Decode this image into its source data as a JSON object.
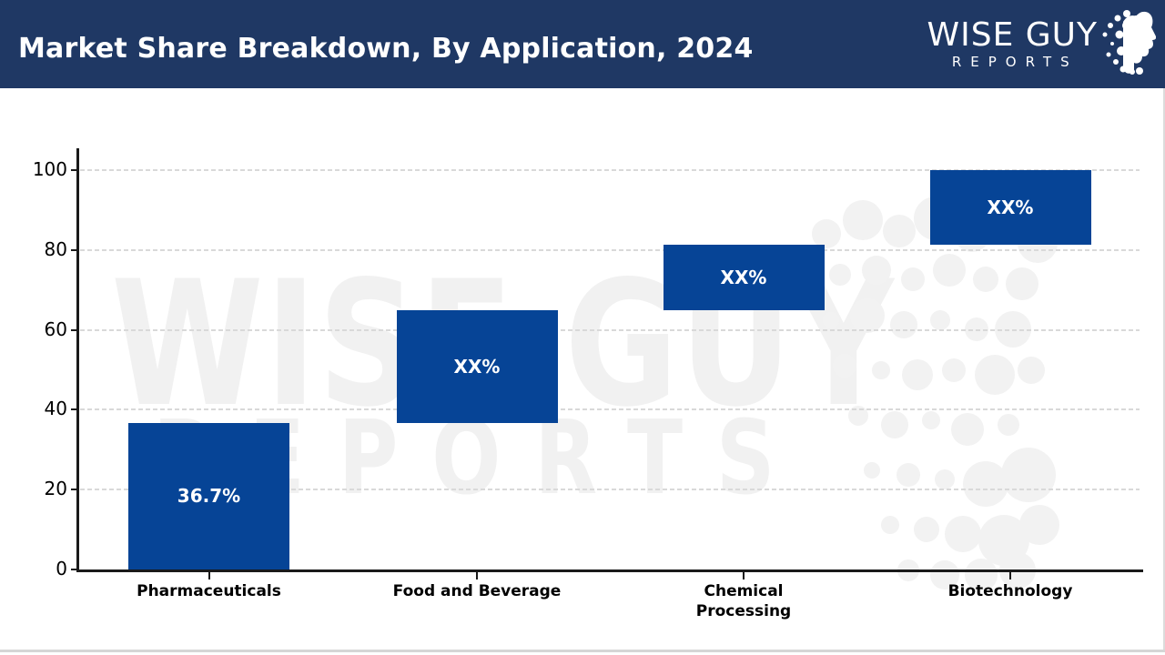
{
  "header": {
    "title": "Market Share Breakdown, By Application, 2024",
    "brand_line1": "WISE GUY",
    "brand_line2": "REPORTS"
  },
  "watermark": {
    "line1": "WISE GUY",
    "line2": "REPORTS"
  },
  "chart_data": {
    "type": "bar",
    "variant": "waterfall",
    "title": "Market Share Breakdown, By Application, 2024",
    "categories": [
      "Pharmaceuticals",
      "Food and Beverage",
      "Chemical Processing",
      "Biotechnology"
    ],
    "category_display": [
      "Pharmaceuticals",
      "Food and Beverage",
      "Chemical\nProcessing",
      "Biotechnology"
    ],
    "segments": [
      {
        "category": "Pharmaceuticals",
        "start": 0,
        "end": 36.7,
        "label": "36.7%"
      },
      {
        "category": "Food and Beverage",
        "start": 36.7,
        "end": 65.0,
        "label": "XX%"
      },
      {
        "category": "Chemical Processing",
        "start": 65.0,
        "end": 81.4,
        "label": "XX%"
      },
      {
        "category": "Biotechnology",
        "start": 81.4,
        "end": 100,
        "label": "XX%"
      }
    ],
    "xlabel": "",
    "ylabel": "",
    "ylim": [
      0,
      105
    ],
    "yticks": [
      0,
      20,
      40,
      60,
      80,
      100
    ],
    "grid": "horizontal dashed",
    "legend": "none",
    "colors": {
      "bar": "#064496",
      "bar_label": "#ffffff",
      "axis": "#1a1a1a",
      "gridline": "#d9d9d9",
      "header_bg": "#1f3864",
      "header_text": "#ffffff",
      "watermark": "#f1f1f1"
    }
  }
}
